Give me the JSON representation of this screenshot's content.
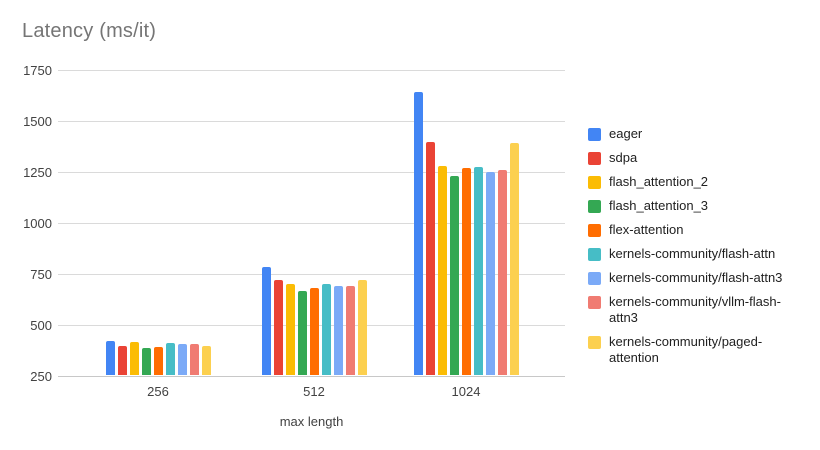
{
  "title": "Latency (ms/it)",
  "chart_data": {
    "type": "bar",
    "title": "Latency (ms/it)",
    "xlabel": "max length",
    "ylabel": "",
    "categories": [
      "256",
      "512",
      "1024"
    ],
    "series": [
      {
        "name": "eager",
        "color": "#4285F4",
        "values": [
          420,
          782,
          1638
        ]
      },
      {
        "name": "sdpa",
        "color": "#EA4335",
        "values": [
          396,
          720,
          1396
        ]
      },
      {
        "name": "flash_attention_2",
        "color": "#FBBC04",
        "values": [
          415,
          698,
          1275
        ]
      },
      {
        "name": "flash_attention_3",
        "color": "#34A853",
        "values": [
          383,
          666,
          1228
        ]
      },
      {
        "name": "flex-attention",
        "color": "#FF6D01",
        "values": [
          389,
          677,
          1267
        ]
      },
      {
        "name": "kernels-community/flash-attn",
        "color": "#46BDC6",
        "values": [
          411,
          697,
          1273
        ]
      },
      {
        "name": "kernels-community/flash-attn3",
        "color": "#7BAAF7",
        "values": [
          404,
          688,
          1247
        ]
      },
      {
        "name": "kernels-community/vllm-flash-attn3",
        "color": "#F07B72",
        "values": [
          406,
          688,
          1255
        ]
      },
      {
        "name": "kernels-community/paged-attention",
        "color": "#FCD04F",
        "values": [
          394,
          717,
          1392
        ]
      }
    ],
    "y_axis": {
      "min": 250,
      "max": 1750,
      "tick_step": 250,
      "ticks": [
        250,
        500,
        750,
        1000,
        1250,
        1500,
        1750
      ]
    },
    "grid": true,
    "legend_position": "right"
  }
}
